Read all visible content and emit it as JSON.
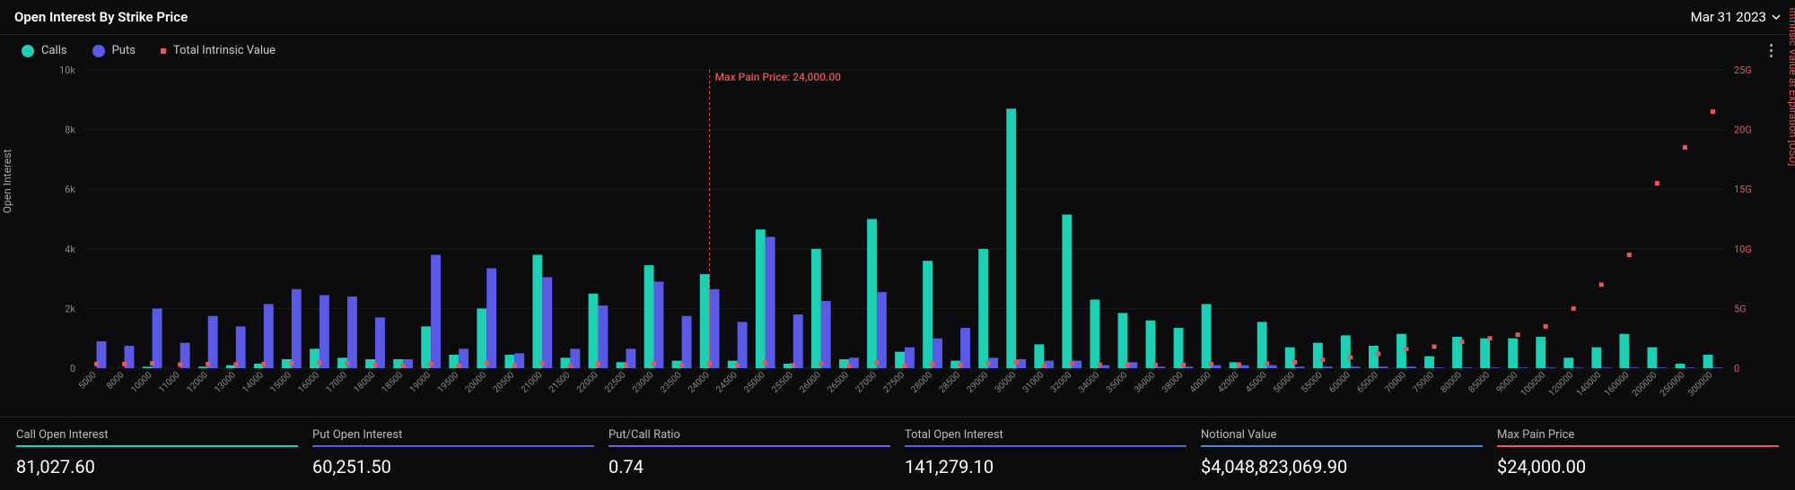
{
  "header": {
    "title": "Open Interest By Strike Price",
    "date": "Mar 31 2023"
  },
  "legend": {
    "calls": {
      "label": "Calls",
      "color": "#1fcfb3"
    },
    "puts": {
      "label": "Puts",
      "color": "#5a5ae6"
    },
    "intrinsic": {
      "label": "Total Intrinsic Value",
      "color": "#e05a5a"
    }
  },
  "chart": {
    "y_left": {
      "label": "Open Interest",
      "min": 0,
      "max": 10000,
      "ticks": [
        0,
        2000,
        4000,
        6000,
        8000,
        10000
      ],
      "tick_labels": [
        "0",
        "2k",
        "4k",
        "6k",
        "8k",
        "10k"
      ]
    },
    "y_right": {
      "label": "Intrinsic Value at Expiration [USD]",
      "min": 0,
      "max": 25000000000,
      "ticks": [
        0,
        5000000000,
        10000000000,
        15000000000,
        20000000000,
        25000000000
      ],
      "tick_labels": [
        "0",
        "5G",
        "10G",
        "15G",
        "20G",
        "25G"
      ]
    },
    "x_labels": [
      "5000",
      "8000",
      "10000",
      "11000",
      "12000",
      "13000",
      "14000",
      "15000",
      "16000",
      "17000",
      "18000",
      "18500",
      "19000",
      "19500",
      "20000",
      "20500",
      "21000",
      "21500",
      "22000",
      "22500",
      "23000",
      "23500",
      "24000",
      "24500",
      "25000",
      "25500",
      "26000",
      "26500",
      "27000",
      "27500",
      "28000",
      "28500",
      "29000",
      "30000",
      "31000",
      "32000",
      "34000",
      "35000",
      "36000",
      "38000",
      "40000",
      "42000",
      "45000",
      "50000",
      "55000",
      "60000",
      "65000",
      "70000",
      "75000",
      "80000",
      "85000",
      "90000",
      "100000",
      "120000",
      "140000",
      "160000",
      "200000",
      "250000",
      "300000"
    ],
    "max_pain": {
      "label": "Max Pain Price: 24,000.00",
      "index": 22
    },
    "series": [
      {
        "strike": "5000",
        "calls": 0,
        "puts": 900,
        "iv": 350000000
      },
      {
        "strike": "8000",
        "calls": 0,
        "puts": 750,
        "iv": 350000000
      },
      {
        "strike": "10000",
        "calls": 50,
        "puts": 2000,
        "iv": 400000000
      },
      {
        "strike": "11000",
        "calls": 0,
        "puts": 850,
        "iv": 300000000
      },
      {
        "strike": "12000",
        "calls": 50,
        "puts": 1750,
        "iv": 350000000
      },
      {
        "strike": "13000",
        "calls": 100,
        "puts": 1400,
        "iv": 300000000
      },
      {
        "strike": "14000",
        "calls": 150,
        "puts": 2150,
        "iv": 350000000
      },
      {
        "strike": "15000",
        "calls": 300,
        "puts": 2650,
        "iv": 400000000
      },
      {
        "strike": "16000",
        "calls": 650,
        "puts": 2450,
        "iv": 450000000
      },
      {
        "strike": "17000",
        "calls": 350,
        "puts": 2400,
        "iv": 400000000
      },
      {
        "strike": "18000",
        "calls": 300,
        "puts": 1700,
        "iv": 300000000
      },
      {
        "strike": "18500",
        "calls": 300,
        "puts": 300,
        "iv": 200000000
      },
      {
        "strike": "19000",
        "calls": 1400,
        "puts": 3800,
        "iv": 350000000
      },
      {
        "strike": "19500",
        "calls": 450,
        "puts": 650,
        "iv": 200000000
      },
      {
        "strike": "20000",
        "calls": 2000,
        "puts": 3350,
        "iv": 400000000
      },
      {
        "strike": "20500",
        "calls": 450,
        "puts": 500,
        "iv": 200000000
      },
      {
        "strike": "21000",
        "calls": 3800,
        "puts": 3050,
        "iv": 400000000
      },
      {
        "strike": "21500",
        "calls": 350,
        "puts": 650,
        "iv": 200000000
      },
      {
        "strike": "22000",
        "calls": 2500,
        "puts": 2100,
        "iv": 350000000
      },
      {
        "strike": "22500",
        "calls": 200,
        "puts": 650,
        "iv": 200000000
      },
      {
        "strike": "23000",
        "calls": 3450,
        "puts": 2900,
        "iv": 400000000
      },
      {
        "strike": "23500",
        "calls": 250,
        "puts": 1750,
        "iv": 250000000
      },
      {
        "strike": "24000",
        "calls": 3150,
        "puts": 2650,
        "iv": 400000000
      },
      {
        "strike": "24500",
        "calls": 250,
        "puts": 1550,
        "iv": 250000000
      },
      {
        "strike": "25000",
        "calls": 4650,
        "puts": 4400,
        "iv": 450000000
      },
      {
        "strike": "25500",
        "calls": 150,
        "puts": 1800,
        "iv": 250000000
      },
      {
        "strike": "26000",
        "calls": 4000,
        "puts": 2250,
        "iv": 400000000
      },
      {
        "strike": "26500",
        "calls": 300,
        "puts": 350,
        "iv": 200000000
      },
      {
        "strike": "27000",
        "calls": 5000,
        "puts": 2550,
        "iv": 450000000
      },
      {
        "strike": "27500",
        "calls": 550,
        "puts": 700,
        "iv": 200000000
      },
      {
        "strike": "28000",
        "calls": 3600,
        "puts": 1000,
        "iv": 350000000
      },
      {
        "strike": "28500",
        "calls": 250,
        "puts": 1350,
        "iv": 250000000
      },
      {
        "strike": "29000",
        "calls": 4000,
        "puts": 350,
        "iv": 400000000
      },
      {
        "strike": "30000",
        "calls": 8700,
        "puts": 300,
        "iv": 500000000
      },
      {
        "strike": "31000",
        "calls": 800,
        "puts": 250,
        "iv": 200000000
      },
      {
        "strike": "32000",
        "calls": 5150,
        "puts": 250,
        "iv": 400000000
      },
      {
        "strike": "34000",
        "calls": 2300,
        "puts": 100,
        "iv": 300000000
      },
      {
        "strike": "35000",
        "calls": 1850,
        "puts": 200,
        "iv": 280000000
      },
      {
        "strike": "36000",
        "calls": 1600,
        "puts": 50,
        "iv": 280000000
      },
      {
        "strike": "38000",
        "calls": 1350,
        "puts": 50,
        "iv": 280000000
      },
      {
        "strike": "40000",
        "calls": 2150,
        "puts": 100,
        "iv": 350000000
      },
      {
        "strike": "42000",
        "calls": 200,
        "puts": 100,
        "iv": 300000000
      },
      {
        "strike": "45000",
        "calls": 1550,
        "puts": 100,
        "iv": 400000000
      },
      {
        "strike": "50000",
        "calls": 700,
        "puts": 50,
        "iv": 500000000
      },
      {
        "strike": "55000",
        "calls": 850,
        "puts": 50,
        "iv": 700000000
      },
      {
        "strike": "60000",
        "calls": 1100,
        "puts": 50,
        "iv": 900000000
      },
      {
        "strike": "65000",
        "calls": 750,
        "puts": 50,
        "iv": 1200000000
      },
      {
        "strike": "70000",
        "calls": 1150,
        "puts": 50,
        "iv": 1600000000
      },
      {
        "strike": "75000",
        "calls": 400,
        "puts": 20,
        "iv": 1800000000
      },
      {
        "strike": "80000",
        "calls": 1050,
        "puts": 20,
        "iv": 2200000000
      },
      {
        "strike": "85000",
        "calls": 1000,
        "puts": 20,
        "iv": 2500000000
      },
      {
        "strike": "90000",
        "calls": 1000,
        "puts": 20,
        "iv": 2800000000
      },
      {
        "strike": "100000",
        "calls": 1050,
        "puts": 20,
        "iv": 3500000000
      },
      {
        "strike": "120000",
        "calls": 350,
        "puts": 20,
        "iv": 5000000000
      },
      {
        "strike": "140000",
        "calls": 700,
        "puts": 20,
        "iv": 7000000000
      },
      {
        "strike": "160000",
        "calls": 1150,
        "puts": 20,
        "iv": 9500000000
      },
      {
        "strike": "200000",
        "calls": 700,
        "puts": 20,
        "iv": 15500000000
      },
      {
        "strike": "250000",
        "calls": 150,
        "puts": 20,
        "iv": 18500000000
      },
      {
        "strike": "300000",
        "calls": 450,
        "puts": 20,
        "iv": 21500000000
      }
    ],
    "colors": {
      "calls": "#1fcfb3",
      "puts": "#5a5ae6",
      "intrinsic": "#e05a5a",
      "background": "#0c0c0f",
      "grid": "#1a1a1d",
      "axis_text": "#888888"
    },
    "bar_width_ratio": 0.35
  },
  "stats": [
    {
      "label": "Call Open Interest",
      "value": "81,027.60",
      "color": "#1fcfb3"
    },
    {
      "label": "Put Open Interest",
      "value": "60,251.50",
      "color": "#5a5ae6"
    },
    {
      "label": "Put/Call Ratio",
      "value": "0.74",
      "color": "#7a5ae6"
    },
    {
      "label": "Total Open Interest",
      "value": "141,279.10",
      "color": "#4a6ae0"
    },
    {
      "label": "Notional Value",
      "value": "$4,048,823,069.90",
      "color": "#4a8ad0"
    },
    {
      "label": "Max Pain Price",
      "value": "$24,000.00",
      "color": "#e05a5a"
    }
  ]
}
